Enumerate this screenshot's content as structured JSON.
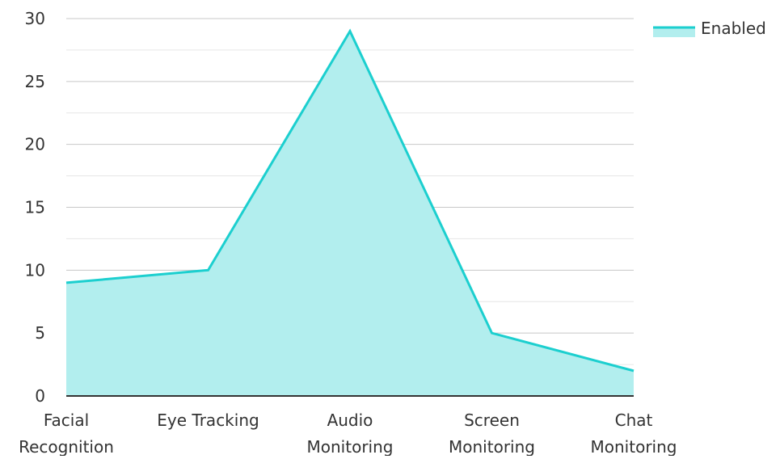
{
  "colors": {
    "line": "#1ccfcf",
    "area": "#b2eeee",
    "grid_major": "#c8c8c8",
    "grid_minor": "#e6e6e6",
    "axis": "#333333",
    "text": "#333333"
  },
  "chart_data": {
    "type": "area",
    "title": "",
    "xlabel": "",
    "ylabel": "",
    "categories": [
      [
        "Facial",
        "Recognition"
      ],
      [
        "Eye Tracking"
      ],
      [
        "Audio",
        "Monitoring"
      ],
      [
        "Screen",
        "Monitoring"
      ],
      [
        "Chat",
        "Monitoring"
      ]
    ],
    "series": [
      {
        "name": "Enabled",
        "values": [
          9,
          10,
          29,
          5,
          2
        ]
      }
    ],
    "ylim": [
      0,
      30
    ],
    "yticks": [
      0,
      5,
      10,
      15,
      20,
      25,
      30
    ],
    "grid": true,
    "legend": "top-right"
  }
}
